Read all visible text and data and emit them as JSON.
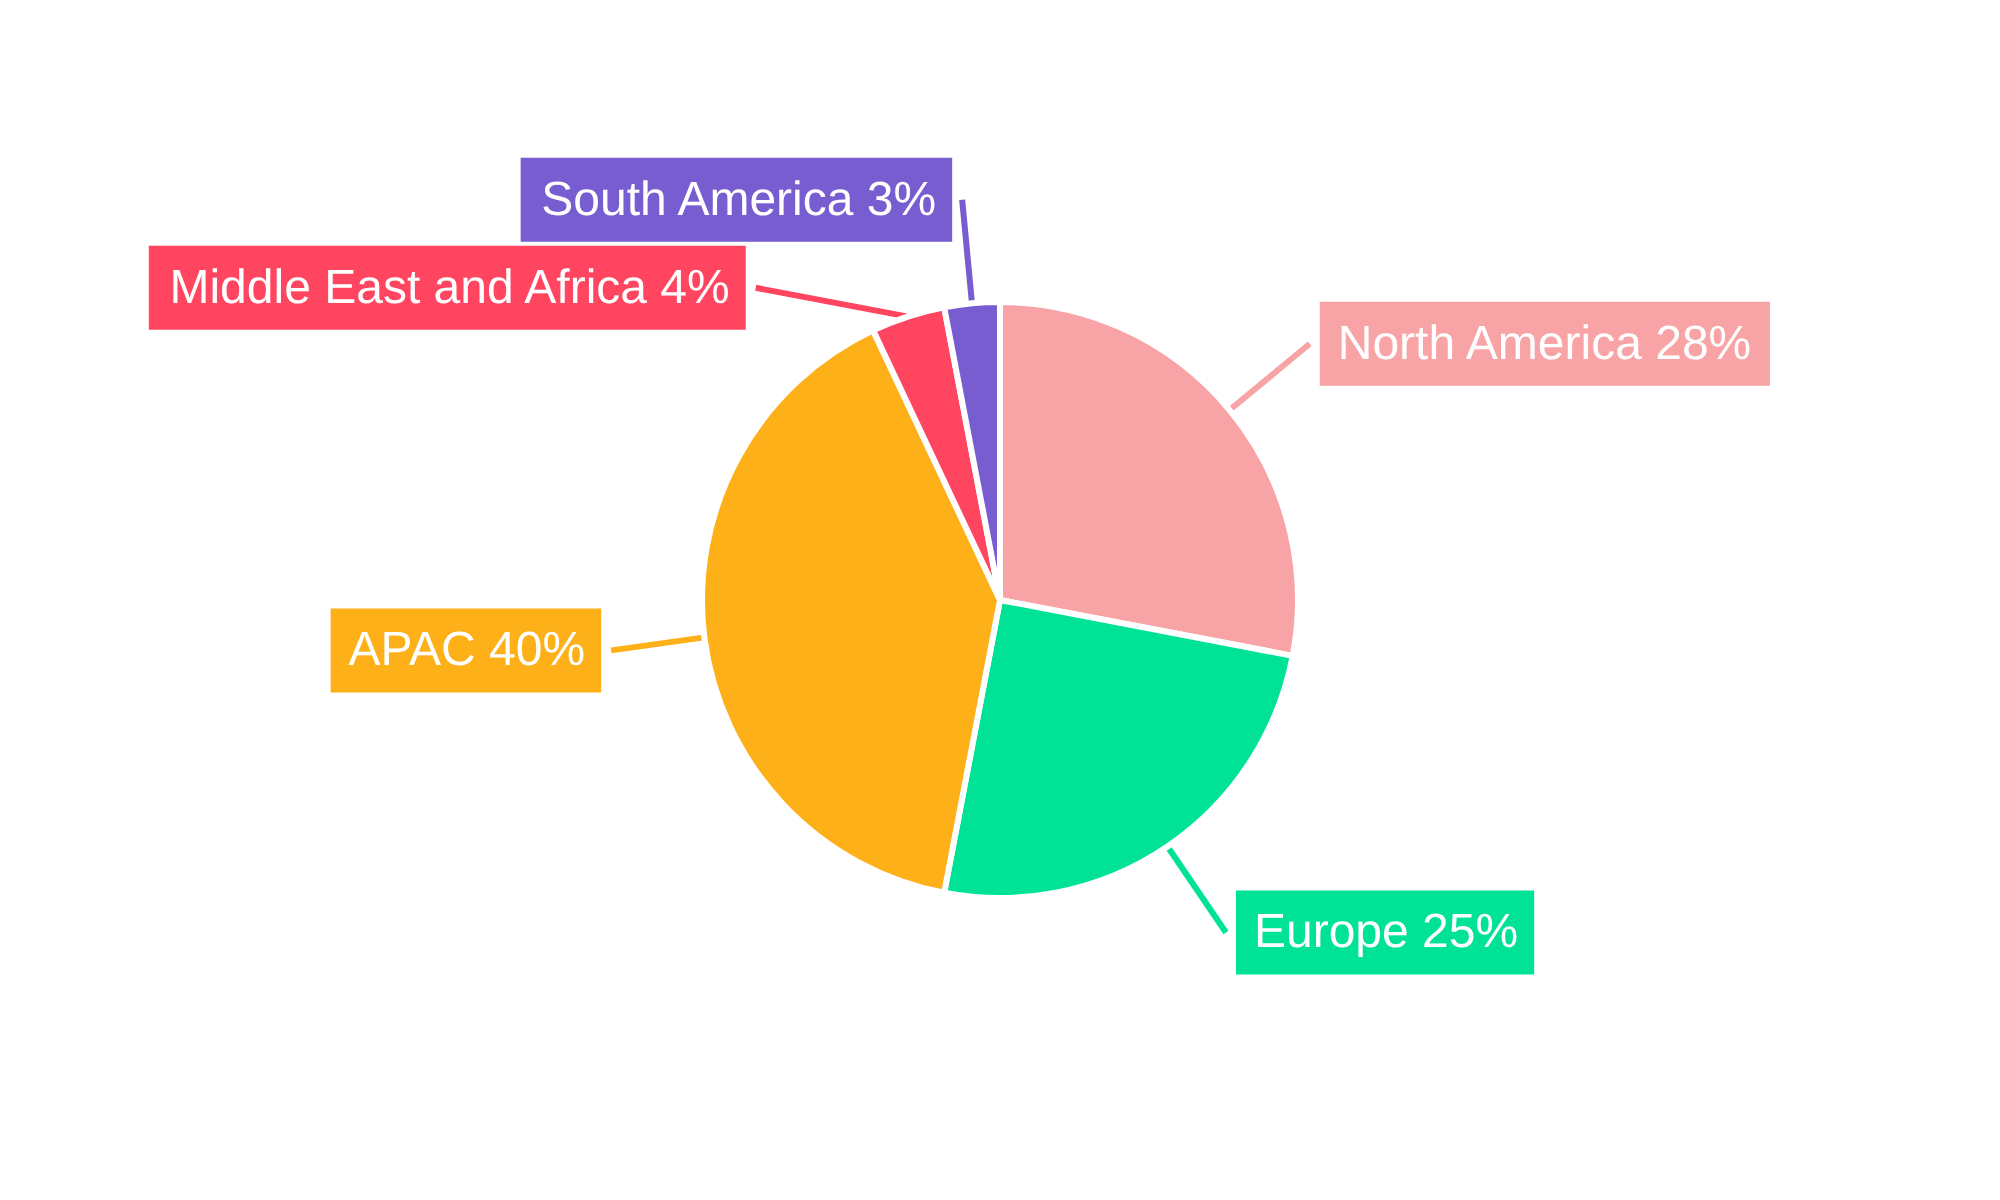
{
  "chart_data": {
    "type": "pie",
    "categories": [
      "North America",
      "Europe",
      "APAC",
      "Middle East and Africa",
      "South America"
    ],
    "values": [
      28,
      25,
      40,
      4,
      3
    ],
    "value_labels": [
      "28%",
      "25%",
      "40%",
      "4%",
      "3%"
    ],
    "colors": [
      "#f8a4a6",
      "#00e396",
      "#feb019",
      "#ff4560",
      "#775dd0"
    ],
    "legend": false
  }
}
